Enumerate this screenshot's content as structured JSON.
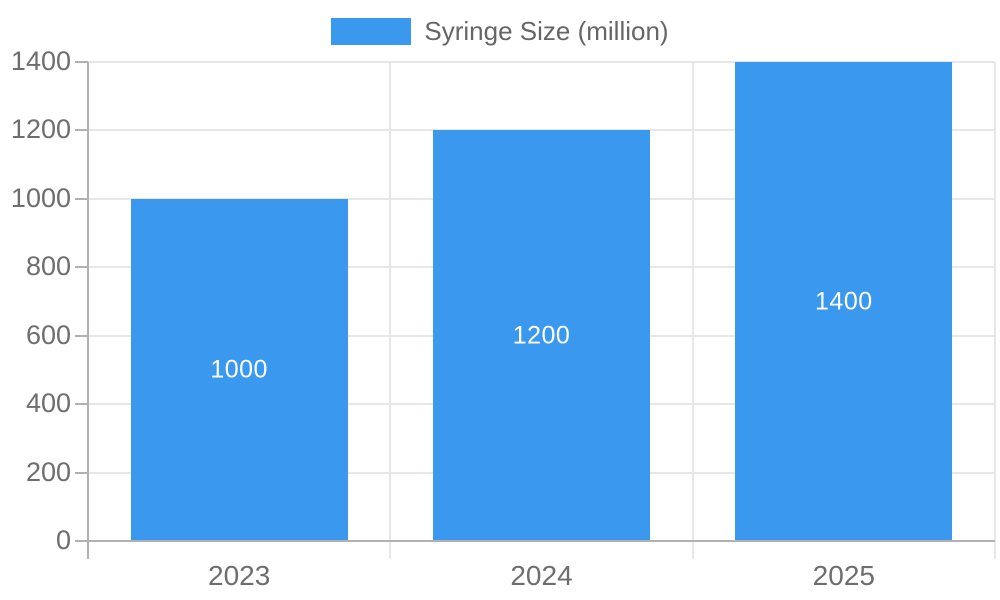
{
  "chart_data": {
    "type": "bar",
    "title": "",
    "legend": {
      "label": "Syringe Size (million)",
      "position": "top"
    },
    "categories": [
      "2023",
      "2024",
      "2025"
    ],
    "series": [
      {
        "name": "Syringe Size (million)",
        "values": [
          1000,
          1200,
          1400
        ]
      }
    ],
    "data_labels": [
      "1000",
      "1200",
      "1400"
    ],
    "xlabel": "",
    "ylabel": "",
    "ylim": [
      0,
      1400
    ],
    "ytick_step": 200,
    "yticks": [
      0,
      200,
      400,
      600,
      800,
      1000,
      1200,
      1400
    ],
    "grid": true,
    "colors": {
      "bar": "#3A99EE",
      "data_label": "#FFFFFF",
      "tick_label": "#6E6E6E",
      "legend_label": "#666666",
      "grid_light": "#E7E7E9",
      "grid_dark": "#B1B1B4"
    }
  }
}
